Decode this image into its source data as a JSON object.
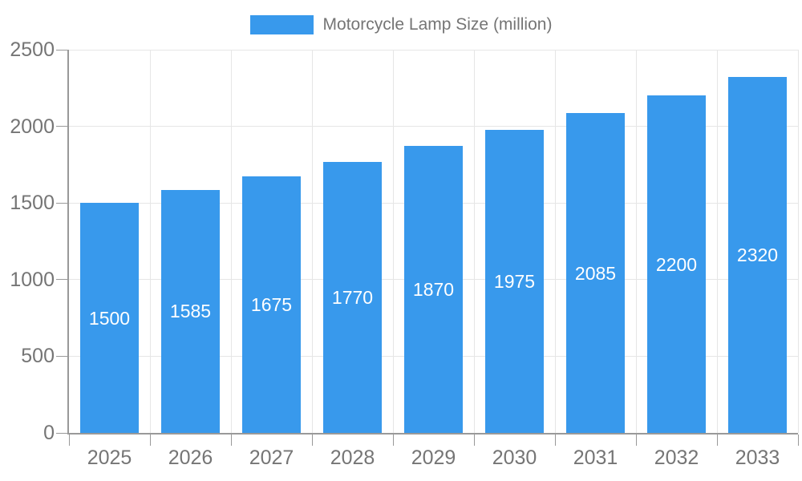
{
  "chart_data": {
    "type": "bar",
    "title": "Motorcycle Lamp Size (million)",
    "categories": [
      "2025",
      "2026",
      "2027",
      "2028",
      "2029",
      "2030",
      "2031",
      "2032",
      "2033"
    ],
    "values": [
      1500,
      1585,
      1675,
      1770,
      1870,
      1975,
      2085,
      2200,
      2320
    ],
    "xlabel": "",
    "ylabel": "",
    "ylim": [
      0,
      2500
    ],
    "yticks": [
      0,
      500,
      1000,
      1500,
      2000,
      2500
    ],
    "grid": true,
    "bar_value_labels_visible": true,
    "legend": {
      "position": "top",
      "label": "Motorcycle Lamp Size (million)"
    },
    "colors": {
      "bar": "#3899EC",
      "bar_label": "#FFFFFF",
      "grid": "#E6E6E6",
      "axis": "#999999",
      "text": "#757575",
      "background": "#FFFFFF"
    }
  }
}
